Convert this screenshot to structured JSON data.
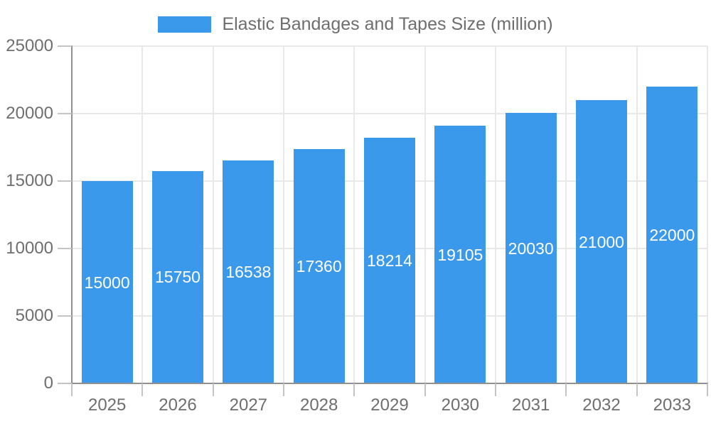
{
  "chart_data": {
    "type": "bar",
    "title": "Elastic Bandages and Tapes Size (million)",
    "categories": [
      "2025",
      "2026",
      "2027",
      "2028",
      "2029",
      "2030",
      "2031",
      "2032",
      "2033"
    ],
    "values": [
      15000,
      15750,
      16538,
      17360,
      18214,
      19105,
      20030,
      21000,
      22000
    ],
    "xlabel": "",
    "ylabel": "",
    "ylim": [
      0,
      25000
    ],
    "ytick_step": 5000,
    "ytick_labels": [
      "0",
      "5000",
      "10000",
      "15000",
      "20000",
      "25000"
    ],
    "grid": true,
    "legend_position": "top",
    "bar_color": "#3B99EC",
    "value_label_color": "#FFFFFF",
    "text_color": "#6E6E6E",
    "grid_color": "#E8E8E8",
    "axis_color": "#909090",
    "tick_color": "#C4C4C4"
  }
}
